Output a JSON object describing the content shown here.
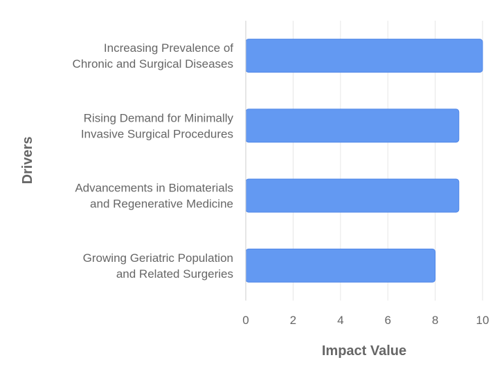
{
  "chart_data": {
    "type": "bar",
    "orientation": "horizontal",
    "categories": [
      [
        "Increasing Prevalence of",
        "Chronic and Surgical Diseases"
      ],
      [
        "Rising Demand for Minimally",
        "Invasive Surgical Procedures"
      ],
      [
        "Advancements in Biomaterials",
        "and Regenerative Medicine"
      ],
      [
        "Growing Geriatric Population",
        "and Related Surgeries"
      ]
    ],
    "values": [
      10,
      9,
      9,
      8
    ],
    "xlabel": "Impact Value",
    "ylabel": "Drivers",
    "xlim": [
      0,
      10
    ],
    "xticks": [
      "0",
      "2",
      "4",
      "6",
      "8",
      "10"
    ],
    "grid": true,
    "legend": "none",
    "colors": {
      "bar_fill": "#6399f2",
      "bar_stroke": "#4f86e8"
    }
  }
}
